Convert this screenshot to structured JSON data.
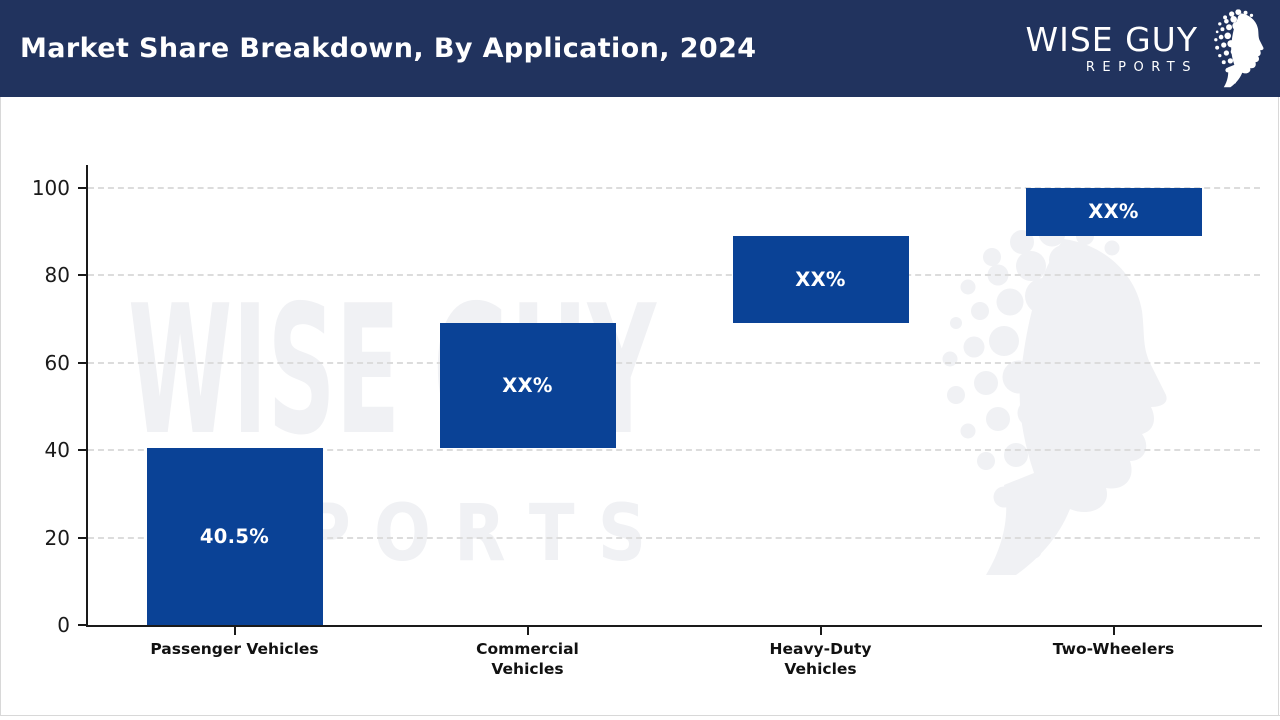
{
  "header": {
    "title": "Market Share Breakdown, By Application, 2024",
    "brand": {
      "line1": "WISE GUY",
      "line2": "REPORTS"
    }
  },
  "watermark": {
    "line1": "WISE GUY",
    "line2": "R E P O R T S"
  },
  "chart_data": {
    "type": "bar",
    "subtype": "waterfall",
    "title": "Market Share Breakdown, By Application, 2024",
    "categories": [
      "Passenger Vehicles",
      "Commercial\nVehicles",
      "Heavy-Duty\nVehicles",
      "Two-Wheelers"
    ],
    "segments": [
      {
        "category": "Passenger Vehicles",
        "start": 0,
        "end": 40.5,
        "label": "40.5%"
      },
      {
        "category": "Commercial Vehicles",
        "start": 40.5,
        "end": 69,
        "label": "XX%"
      },
      {
        "category": "Heavy-Duty Vehicles",
        "start": 69,
        "end": 89,
        "label": "XX%"
      },
      {
        "category": "Two-Wheelers",
        "start": 89,
        "end": 100,
        "label": "XX%"
      }
    ],
    "yticks": [
      0,
      20,
      40,
      60,
      80,
      100
    ],
    "ylim": [
      0,
      105
    ],
    "xlabel": "",
    "ylabel": "",
    "grid": "horizontal-dashed",
    "legend": "none",
    "bar_color": "#0a4296",
    "label_color": "#ffffff"
  },
  "colors": {
    "header_bg": "#21335e",
    "bar_fill": "#0a4296",
    "bar_label": "#ffffff",
    "title_text": "#ffffff",
    "axis_text": "#1a1a1a",
    "gridline": "#dcdcdc",
    "watermark": "#f0f1f4",
    "frame_line": "#d8d8d8"
  }
}
